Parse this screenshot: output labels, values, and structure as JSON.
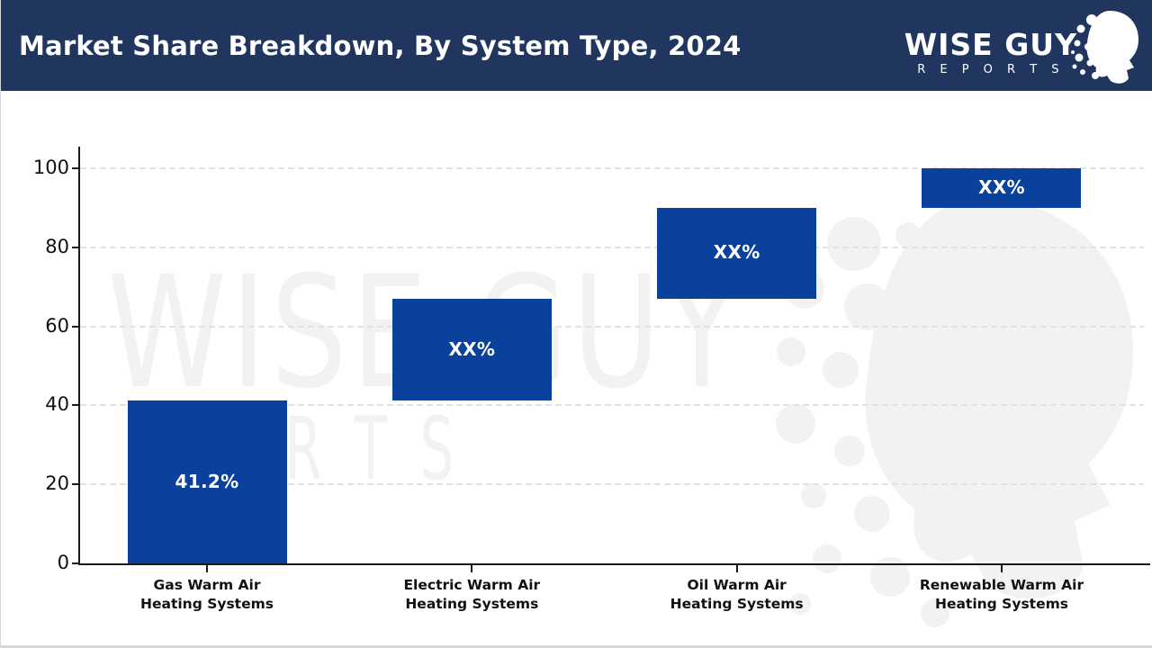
{
  "header": {
    "title": "Market Share Breakdown, By System Type, 2024",
    "bg_color": "#21365f",
    "logo": {
      "line1": "WISE GUY",
      "line2": "R E P O R T S"
    }
  },
  "watermark": {
    "line1": "WISE GUY",
    "line2": "P O R T S"
  },
  "chart_data": {
    "type": "bar",
    "subtype": "waterfall",
    "title": "Market Share Breakdown, By System Type, 2024",
    "categories": [
      {
        "lines": [
          "Gas Warm Air",
          "Heating Systems"
        ]
      },
      {
        "lines": [
          "Electric Warm Air",
          "Heating Systems"
        ]
      },
      {
        "lines": [
          "Oil Warm Air",
          "Heating Systems"
        ]
      },
      {
        "lines": [
          "Renewable Warm Air",
          "Heating Systems"
        ]
      }
    ],
    "segments": [
      {
        "category": "Gas Warm Air Heating Systems",
        "start": 0,
        "end": 41.2,
        "label": "41.2%"
      },
      {
        "category": "Electric Warm Air Heating Systems",
        "start": 41.2,
        "end": 67,
        "label": "XX%"
      },
      {
        "category": "Oil Warm Air Heating Systems",
        "start": 67,
        "end": 90,
        "label": "XX%"
      },
      {
        "category": "Renewable Warm Air Heating Systems",
        "start": 90,
        "end": 100,
        "label": "XX%"
      }
    ],
    "ylim": [
      0,
      100
    ],
    "yticks": [
      0,
      20,
      40,
      60,
      80,
      100
    ],
    "grid": "horizontal-dashed",
    "legend": "none",
    "bar_color": "#09419c",
    "bar_label_color": "#ffffff"
  }
}
